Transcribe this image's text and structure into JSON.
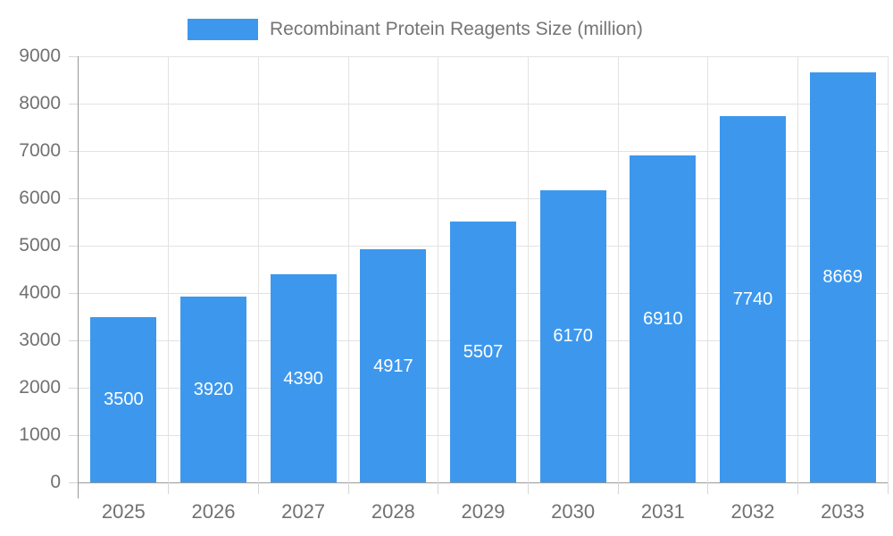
{
  "legend": {
    "label": "Recombinant Protein Reagents Size (million)"
  },
  "chart_data": {
    "type": "bar",
    "title": "Recombinant Protein Reagents Size (million)",
    "series_name": "Recombinant Protein Reagents Size (million)",
    "categories": [
      "2025",
      "2026",
      "2027",
      "2028",
      "2029",
      "2030",
      "2031",
      "2032",
      "2033"
    ],
    "values": [
      3500,
      3920,
      4390,
      4917,
      5507,
      6170,
      6910,
      7740,
      8669
    ],
    "xlabel": "",
    "ylabel": "",
    "ylim": [
      0,
      9000
    ],
    "ytick_step": 1000,
    "ytick_labels": [
      "0",
      "1000",
      "2000",
      "3000",
      "4000",
      "5000",
      "6000",
      "7000",
      "8000",
      "9000"
    ],
    "grid": true,
    "legend_position": "top-center",
    "bar_label_position": "inside-center"
  },
  "colors": {
    "bar": "#3D98ED",
    "bar_label": "#FFFFFF",
    "axis_text": "#717171",
    "legend_text": "#757575",
    "gridline": "#E2E2E2",
    "axis_line": "#999999",
    "minor_tick": "#D6D6D6",
    "background": "#FFFFFF"
  }
}
